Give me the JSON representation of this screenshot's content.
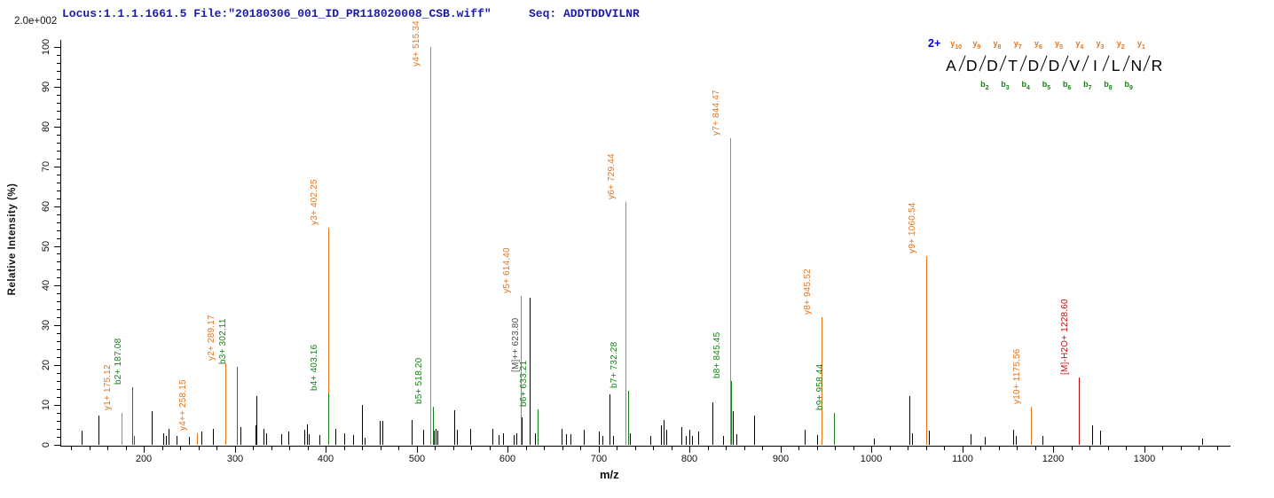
{
  "header": {
    "locus_file": "Locus:1.1.1.1661.5 File:\"20180306_001_ID_PR118020008_CSB.wiff\"",
    "seq_label": "Seq: ADDTDDVILNR",
    "scale_label": "2.0e+002"
  },
  "colors": {
    "y_ion": "#e2751e",
    "b_ion": "#158015",
    "precursor_line": "#000000",
    "precursor_label": "#4a4a4a",
    "loss": "#bb1111",
    "peak": "#000000",
    "header_text": "#1a1aae",
    "charge_text": "#0000dd"
  },
  "chart_data": {
    "type": "bar",
    "subtype": "ms2-peptide-fragmentation-spectrum",
    "title": "",
    "xlabel": "m/z",
    "ylabel": "Relative  Intensity (%)",
    "xlim": [
      108,
      1395
    ],
    "ylim": [
      0,
      100
    ],
    "x_major_ticks": [
      200,
      300,
      400,
      500,
      600,
      700,
      800,
      900,
      1000,
      1100,
      1200,
      1300
    ],
    "x_minor_step": 20,
    "y_major_step": 10,
    "y_minor_step": 2,
    "grid": false,
    "legend": "none",
    "labeled_peaks": [
      {
        "label": "y1+ 175.12",
        "mz": 175.12,
        "intensity": 8,
        "type": "y"
      },
      {
        "label": "b2+ 187.08",
        "mz": 187.08,
        "intensity": 14.5,
        "type": "b"
      },
      {
        "label": "",
        "mz": 189.1,
        "intensity": 2.2,
        "type": "b"
      },
      {
        "label": "y4++ 258.15",
        "mz": 258.15,
        "intensity": 3,
        "type": "y"
      },
      {
        "label": "y2+ 289.17",
        "mz": 289.17,
        "intensity": 20.5,
        "type": "y"
      },
      {
        "label": "b3+ 302.11",
        "mz": 302.11,
        "intensity": 19.5,
        "type": "b"
      },
      {
        "label": "y3+ 402.25",
        "mz": 402.25,
        "intensity": 54.5,
        "type": "y"
      },
      {
        "label": "b4+ 403.16",
        "mz": 403.16,
        "intensity": 13,
        "type": "b"
      },
      {
        "label": "y4+ 515.34",
        "mz": 515.34,
        "intensity": 100,
        "type": "y",
        "label_bottom_pct": 95
      },
      {
        "label": "b5+ 518.20",
        "mz": 518.2,
        "intensity": 9.5,
        "type": "b"
      },
      {
        "label": "y5+ 614.40",
        "mz": 614.4,
        "intensity": 37.5,
        "type": "y"
      },
      {
        "label": "[M]++ 623.80",
        "mz": 623.8,
        "intensity": 37,
        "type": "precursor",
        "label_bottom_pct": 18.3
      },
      {
        "label": "b6+ 633.21",
        "mz": 633.21,
        "intensity": 9,
        "type": "b"
      },
      {
        "label": "y6+ 729.44",
        "mz": 729.44,
        "intensity": 61,
        "type": "y"
      },
      {
        "label": "b7+ 732.28",
        "mz": 732.28,
        "intensity": 13.5,
        "type": "b"
      },
      {
        "label": "y7+ 844.47",
        "mz": 844.47,
        "intensity": 77,
        "type": "y"
      },
      {
        "label": "b8+ 845.45",
        "mz": 845.45,
        "intensity": 16,
        "type": "b"
      },
      {
        "label": "y8+ 945.52",
        "mz": 945.52,
        "intensity": 32,
        "type": "y"
      },
      {
        "label": "b9+ 958.44",
        "mz": 958.44,
        "intensity": 8,
        "type": "b"
      },
      {
        "label": "y9+ 1060.54",
        "mz": 1060.54,
        "intensity": 47.5,
        "type": "y"
      },
      {
        "label": "y10+ 1175.56",
        "mz": 1175.56,
        "intensity": 9.5,
        "type": "y"
      },
      {
        "label": "[M]-H2O+ 1228.60",
        "mz": 1228.6,
        "intensity": 17,
        "type": "loss"
      }
    ],
    "unlabeled_peaks": [
      [
        131,
        3.5
      ],
      [
        150,
        7.3
      ],
      [
        208.5,
        8.5
      ],
      [
        221,
        3
      ],
      [
        224,
        2.2
      ],
      [
        227,
        4
      ],
      [
        236,
        2.3
      ],
      [
        249.5,
        2
      ],
      [
        263,
        3.4
      ],
      [
        276,
        3.9
      ],
      [
        306,
        4.5
      ],
      [
        322.6,
        5
      ],
      [
        324,
        12.3
      ],
      [
        331.5,
        4
      ],
      [
        334,
        3
      ],
      [
        351,
        2.7
      ],
      [
        358.7,
        3.4
      ],
      [
        376,
        3.8
      ],
      [
        379,
        5.1
      ],
      [
        381,
        2.7
      ],
      [
        393,
        2.5
      ],
      [
        410.5,
        4
      ],
      [
        420,
        3
      ],
      [
        430,
        2.5
      ],
      [
        440,
        10
      ],
      [
        443,
        1.8
      ],
      [
        459,
        6
      ],
      [
        462,
        6
      ],
      [
        494,
        6.3
      ],
      [
        507,
        3.8
      ],
      [
        519,
        3.5
      ],
      [
        521,
        4
      ],
      [
        523,
        3.5
      ],
      [
        541,
        8.6
      ],
      [
        544,
        3.8
      ],
      [
        558.7,
        4
      ],
      [
        583,
        4
      ],
      [
        590,
        2.5
      ],
      [
        595,
        3
      ],
      [
        607,
        2.5
      ],
      [
        610,
        3
      ],
      [
        615.5,
        7
      ],
      [
        630,
        3
      ],
      [
        659,
        4
      ],
      [
        664,
        2.7
      ],
      [
        669,
        2.7
      ],
      [
        683.6,
        3.8
      ],
      [
        700,
        3.4
      ],
      [
        704,
        2.2
      ],
      [
        712,
        12.7
      ],
      [
        716,
        2.2
      ],
      [
        734.5,
        3
      ],
      [
        757,
        2.2
      ],
      [
        768.6,
        4.9
      ],
      [
        771.5,
        6.3
      ],
      [
        774.5,
        3.8
      ],
      [
        791,
        4.5
      ],
      [
        796,
        2.2
      ],
      [
        799.8,
        3.8
      ],
      [
        802.8,
        2.2
      ],
      [
        809.6,
        3.4
      ],
      [
        825,
        10.7
      ],
      [
        836.8,
        2.2
      ],
      [
        847.5,
        8.5
      ],
      [
        851.5,
        2.7
      ],
      [
        871,
        7.4
      ],
      [
        926.6,
        3.8
      ],
      [
        940.3,
        2.5
      ],
      [
        1003,
        1.5
      ],
      [
        1041.8,
        12.3
      ],
      [
        1044.7,
        3
      ],
      [
        1063.5,
        3.5
      ],
      [
        1109,
        2.7
      ],
      [
        1124.6,
        2
      ],
      [
        1156,
        3.8
      ],
      [
        1159,
        2.2
      ],
      [
        1188,
        2.2
      ],
      [
        1242.6,
        5
      ],
      [
        1251.4,
        3.5
      ],
      [
        1363.6,
        1.5
      ]
    ]
  },
  "sequence_panel": {
    "charge": "2+",
    "residues": [
      "A",
      "D",
      "D",
      "T",
      "D",
      "D",
      "V",
      "I",
      "L",
      "N",
      "R"
    ],
    "y_ion_labels": [
      [
        "y",
        "10"
      ],
      [
        "y",
        "9"
      ],
      [
        "y",
        "8"
      ],
      [
        "y",
        "7"
      ],
      [
        "y",
        "6"
      ],
      [
        "y",
        "5"
      ],
      [
        "y",
        "4"
      ],
      [
        "y",
        "3"
      ],
      [
        "y",
        "2"
      ],
      [
        "y",
        "1"
      ]
    ],
    "b_ion_labels": [
      [
        "b",
        "2"
      ],
      [
        "b",
        "3"
      ],
      [
        "b",
        "4"
      ],
      [
        "b",
        "5"
      ],
      [
        "b",
        "6"
      ],
      [
        "b",
        "7"
      ],
      [
        "b",
        "8"
      ],
      [
        "b",
        "9"
      ]
    ],
    "b_first_cleavage": 2
  }
}
